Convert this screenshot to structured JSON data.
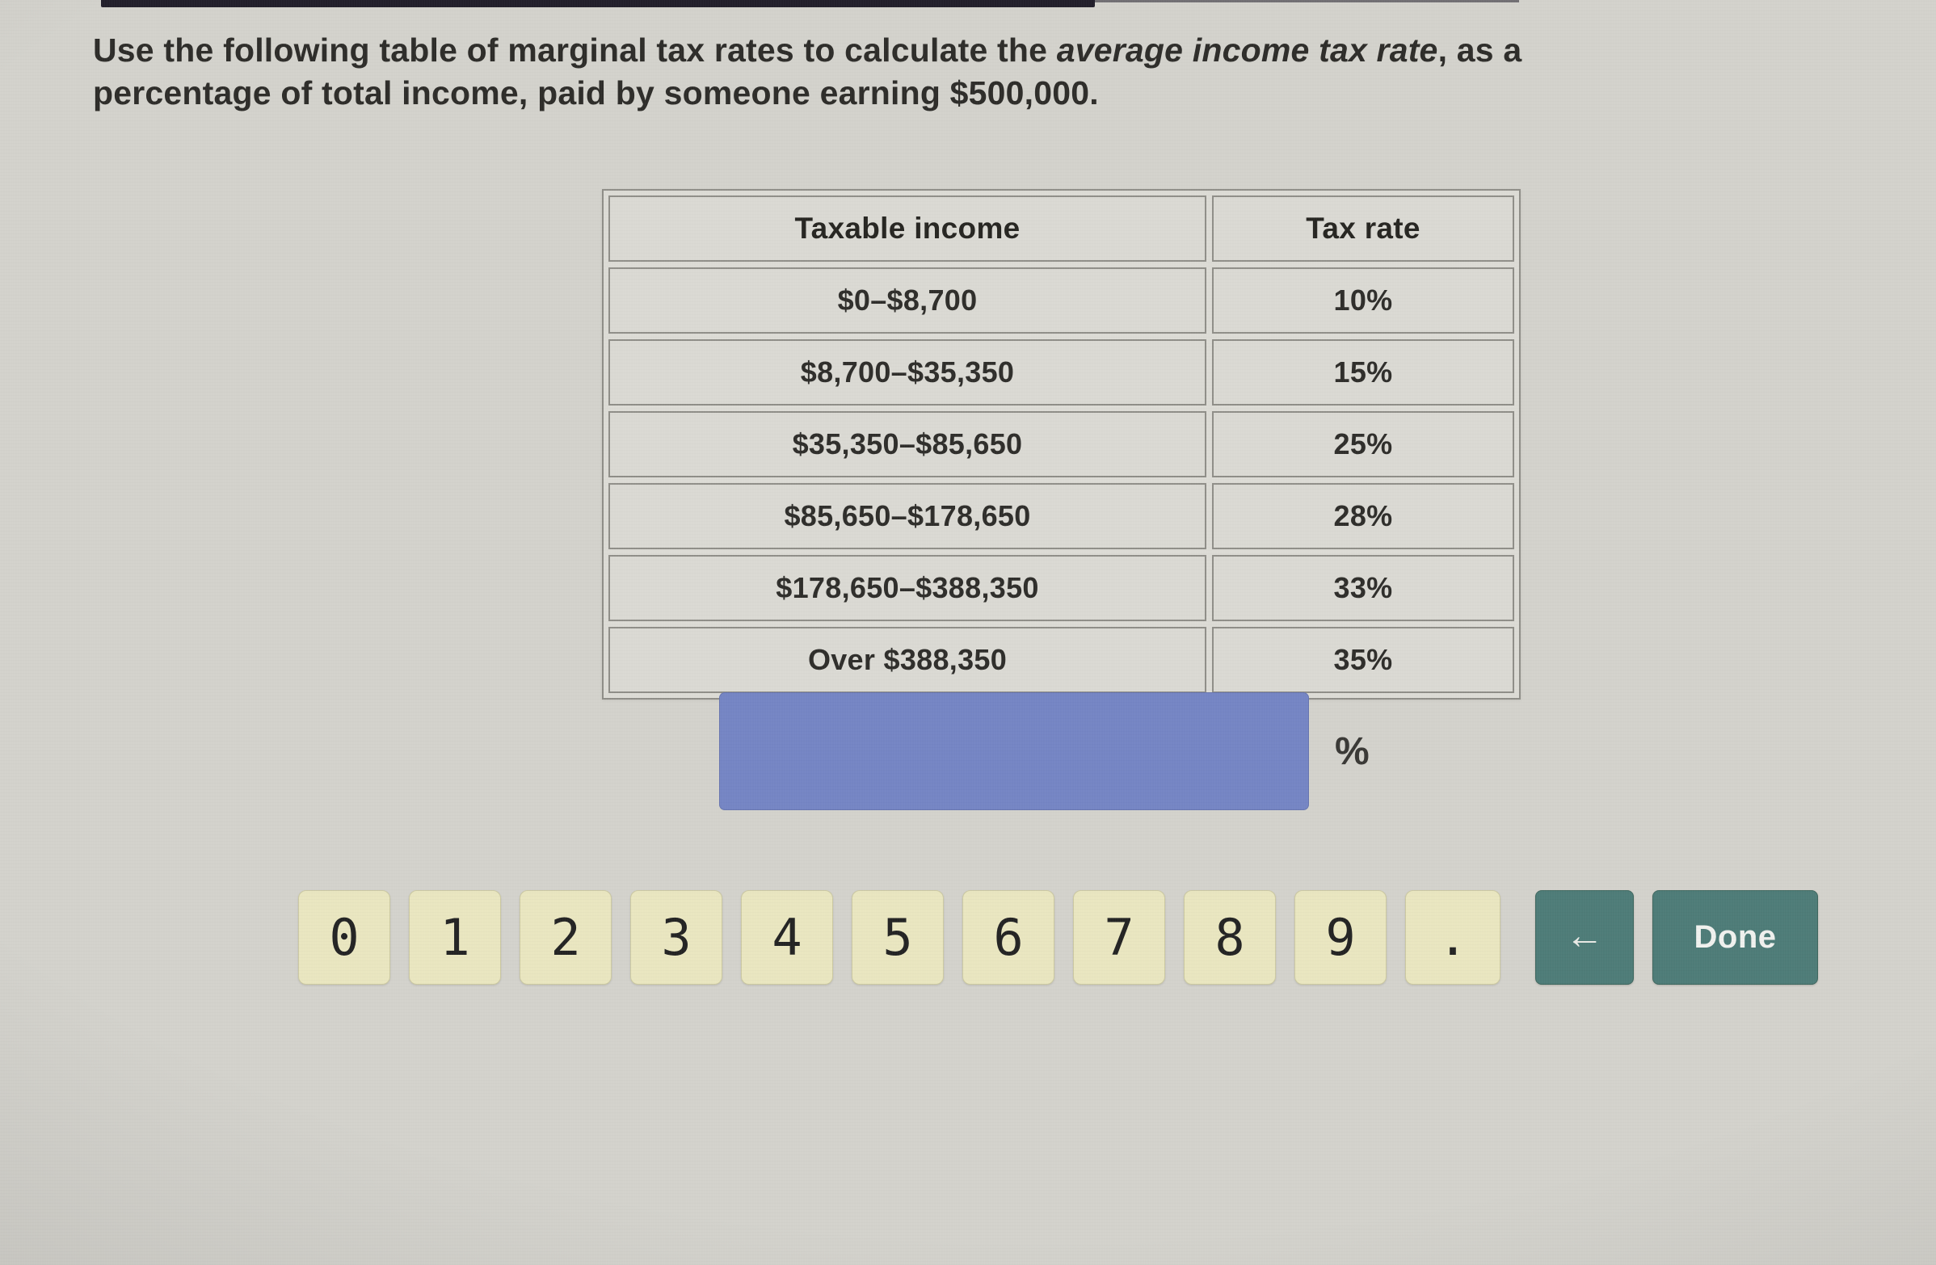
{
  "question": {
    "line1": {
      "before_italic": "Use the following table of marginal tax rates to calculate the ",
      "italic": "average income tax rate",
      "after_italic": ", as a"
    },
    "line2": "percentage of total income, paid by someone earning $500,000."
  },
  "table": {
    "headers": [
      "Taxable income",
      "Tax rate"
    ],
    "rows": [
      [
        "$0–$8,700",
        "10%"
      ],
      [
        "$8,700–$35,350",
        "15%"
      ],
      [
        "$35,350–$85,650",
        "25%"
      ],
      [
        "$85,650–$178,650",
        "28%"
      ],
      [
        "$178,650–$388,350",
        "33%"
      ],
      [
        "Over $388,350",
        "35%"
      ]
    ]
  },
  "answer": {
    "value": "",
    "unit": "%"
  },
  "keypad": {
    "keys": [
      "0",
      "1",
      "2",
      "3",
      "4",
      "5",
      "6",
      "7",
      "8",
      "9",
      "."
    ],
    "backspace_glyph": "←",
    "done_label": "Done"
  },
  "colors": {
    "background": "#d3d2cc",
    "input_fill": "#7585c4",
    "key_fill": "#e9e6c0",
    "action_fill": "#4e7c78",
    "table_border": "#8f8e88"
  }
}
